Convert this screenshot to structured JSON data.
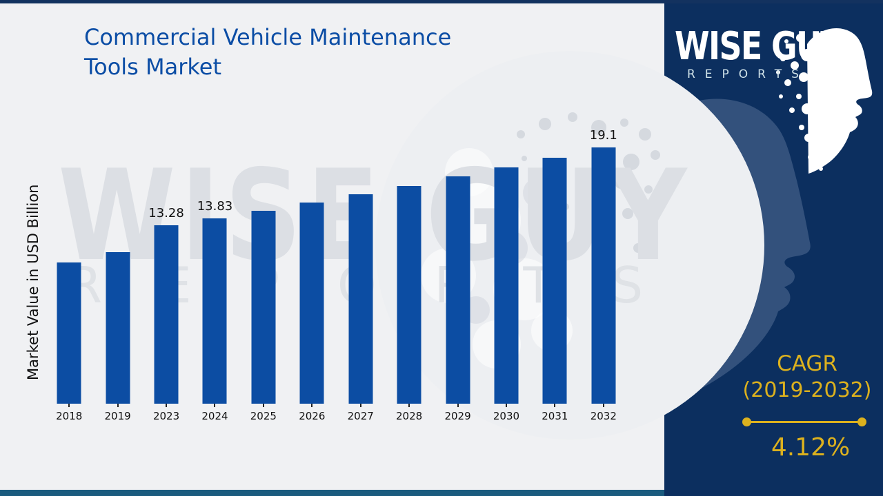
{
  "title": {
    "line1": "Commercial Vehicle Maintenance",
    "line2": "Tools Market"
  },
  "logo": {
    "brand": "WISE GUY",
    "sub": "REPORTS"
  },
  "watermark": {
    "line1": "WISE GUY",
    "line2": "REPORTS"
  },
  "cagr": {
    "heading": "CAGR",
    "range": "(2019-2032)",
    "value": "4.12%"
  },
  "colors": {
    "background": "#f0f1f3",
    "bar": "#0c4da3",
    "title_text": "#0b4da5",
    "navy_panel": "#0c2f5f",
    "gold": "#dcb11e",
    "teal_strip": "#1a5b7e",
    "face_silhouette": "#33517c"
  },
  "chart_data": {
    "type": "bar",
    "title": "Commercial Vehicle Maintenance Tools Market",
    "categories": [
      "2018",
      "2019",
      "2023",
      "2024",
      "2025",
      "2026",
      "2027",
      "2028",
      "2029",
      "2030",
      "2031",
      "2032"
    ],
    "values": [
      10.5,
      11.3,
      13.28,
      13.83,
      14.4,
      15.0,
      15.61,
      16.25,
      16.92,
      17.62,
      18.35,
      19.1
    ],
    "data_labels": [
      "",
      "",
      "13.28",
      "13.83",
      "",
      "",
      "",
      "",
      "",
      "",
      "",
      "19.1"
    ],
    "xlabel": "",
    "ylabel": "Market Value in USD Billion",
    "ylim": [
      0,
      19.6
    ],
    "grid": false,
    "legend": false,
    "bar_color": "#0c4da3"
  }
}
